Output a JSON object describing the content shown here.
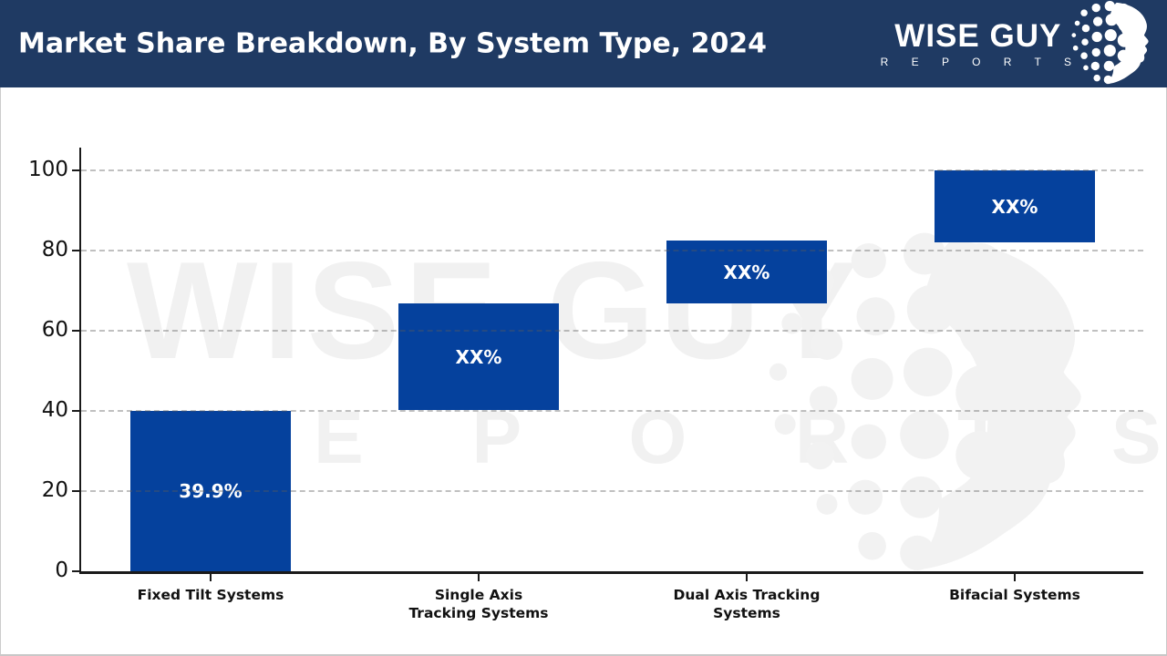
{
  "header": {
    "title": "Market Share Breakdown, By System Type, 2024",
    "bg_color": "#1f3a63",
    "logo": {
      "line1": "WISE GUY",
      "line2": "R E P O R T S"
    }
  },
  "watermark": {
    "line1": "WISE GUY",
    "line2": "R E P O R T S"
  },
  "chart_data": {
    "type": "bar",
    "variant": "waterfall",
    "title": "Market Share Breakdown, By System Type, 2024",
    "categories": [
      [
        "Fixed Tilt Systems"
      ],
      [
        "Single Axis",
        "Tracking Systems"
      ],
      [
        "Dual Axis Tracking",
        "Systems"
      ],
      [
        "Bifacial Systems"
      ]
    ],
    "segments": [
      {
        "category": "Fixed Tilt Systems",
        "label": "39.9%",
        "start": 0,
        "end": 39.9
      },
      {
        "category": "Single Axis Tracking Systems",
        "label": "XX%",
        "start": 40.2,
        "end": 66.8
      },
      {
        "category": "Dual Axis Tracking Systems",
        "label": "XX%",
        "start": 66.8,
        "end": 82.5
      },
      {
        "category": "Bifacial Systems",
        "label": "XX%",
        "start": 82.0,
        "end": 100
      }
    ],
    "ylim": [
      0,
      100
    ],
    "yticks": [
      0,
      20,
      40,
      60,
      80,
      100
    ],
    "grid": "horizontal-dashed-drawn-above-bars",
    "legend": "none",
    "bar_color": "#05419d",
    "bar_label_color": "#ffffff",
    "axis_color": "#1a1a1a"
  }
}
